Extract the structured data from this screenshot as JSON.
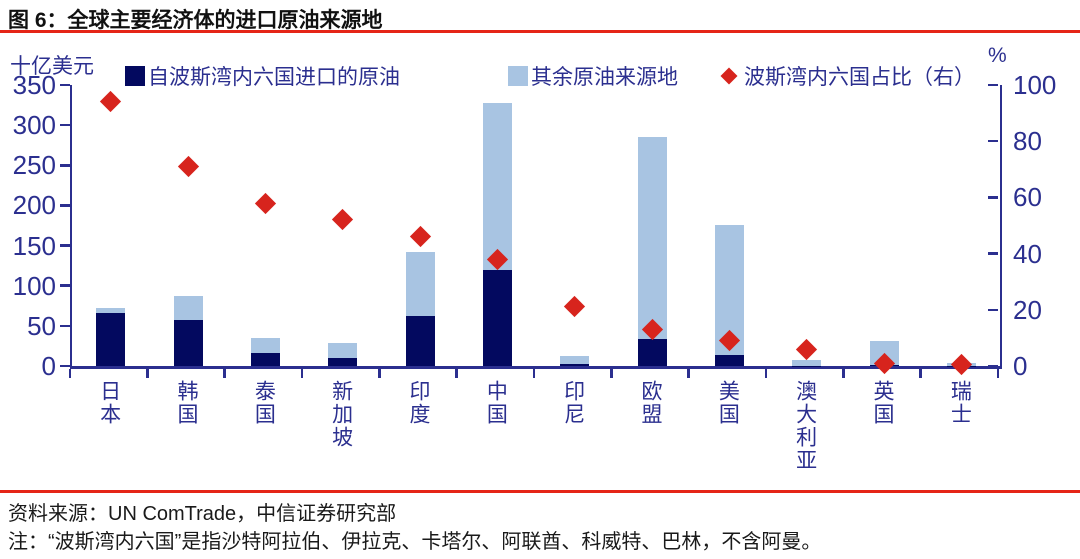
{
  "title": "图 6：全球主要经济体的进口原油来源地",
  "source": "资料来源：UN ComTrade，中信证券研究部",
  "note": "注：“波斯湾内六国”是指沙特阿拉伯、伊拉克、卡塔尔、阿联酋、科威特、巴林，不含阿曼。",
  "colors": {
    "navy": "#2B2F8F",
    "dark_bar": "#03095F",
    "light_bar": "#A8C4E2",
    "red": "#D7241D",
    "rule_red": "#E52517"
  },
  "chart_data": {
    "type": "bar",
    "stacked": true,
    "legend_position": "top",
    "grid": false,
    "categories": [
      "日本",
      "韩国",
      "泰国",
      "新加坡",
      "印度",
      "中国",
      "印尼",
      "欧盟",
      "美国",
      "澳大利亚",
      "英国",
      "瑞士"
    ],
    "category_slugs": [
      "japan",
      "south-korea",
      "thailand",
      "singapore",
      "india",
      "china",
      "indonesia",
      "eu",
      "usa",
      "australia",
      "uk",
      "switzerland"
    ],
    "series": [
      {
        "name": "自波斯湾内六国进口的原油",
        "type": "bar",
        "axis": "left",
        "values": [
          66,
          57,
          16,
          10,
          62,
          120,
          2,
          34,
          14,
          0.5,
          1,
          0.5
        ]
      },
      {
        "name": "其余原油来源地",
        "type": "bar",
        "axis": "left",
        "values": [
          6,
          30,
          19,
          19,
          80,
          207,
          10,
          251,
          162,
          6.5,
          30,
          3.5
        ]
      },
      {
        "name": "波斯湾内六国占比（右）",
        "type": "scatter-diamond",
        "axis": "right",
        "values": [
          94,
          71,
          58,
          52,
          46,
          38,
          21,
          13,
          9,
          6,
          1,
          0.5
        ]
      }
    ],
    "left_axis": {
      "title": "十亿美元",
      "min": 0,
      "max": 350,
      "ticks": [
        0,
        50,
        100,
        150,
        200,
        250,
        300,
        350
      ]
    },
    "right_axis": {
      "title": "%",
      "min": 0,
      "max": 100,
      "ticks": [
        0,
        20,
        40,
        60,
        80,
        100
      ]
    }
  }
}
